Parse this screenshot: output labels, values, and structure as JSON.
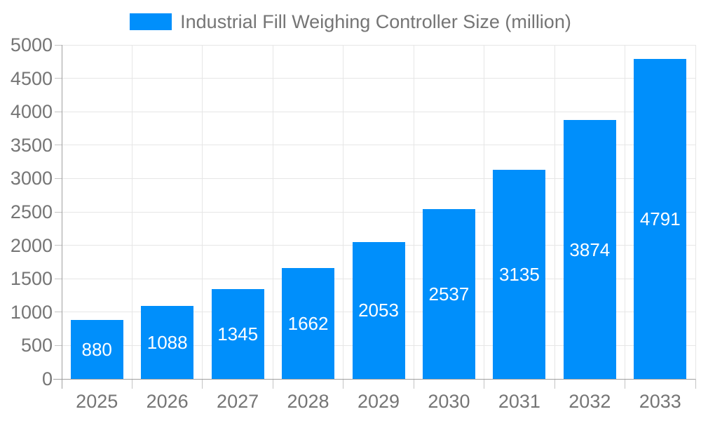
{
  "legend": {
    "label": "Industrial Fill Weighing Controller Size (million)"
  },
  "chart_data": {
    "type": "bar",
    "title": "Industrial Fill Weighing Controller Size (million)",
    "categories": [
      "2025",
      "2026",
      "2027",
      "2028",
      "2029",
      "2030",
      "2031",
      "2032",
      "2033"
    ],
    "values": [
      880,
      1088,
      1345,
      1662,
      2053,
      2537,
      3135,
      3874,
      4791
    ],
    "xlabel": "",
    "ylabel": "",
    "ylim": [
      0,
      5000
    ],
    "ytick_step": 500,
    "yticks": [
      0,
      500,
      1000,
      1500,
      2000,
      2500,
      3000,
      3500,
      4000,
      4500,
      5000
    ],
    "grid": true,
    "legend_position": "top-center",
    "bar_value_labels": true
  },
  "colors": {
    "bar": "#008ffb",
    "bar_value_text": "#ffffff",
    "axis_text": "#757575",
    "legend_text": "#757575",
    "gridline": "#e6e6e6",
    "axis_line": "#a0a0a0",
    "tick": "#c4c4c4",
    "background": "#ffffff"
  }
}
